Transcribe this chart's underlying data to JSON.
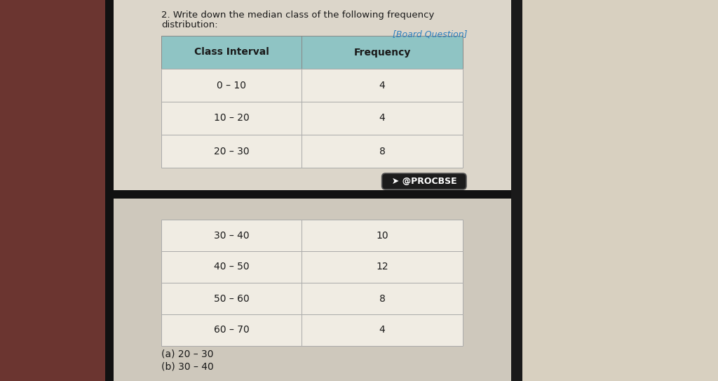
{
  "title_line1": "2. Write down the median class of the following frequency",
  "title_line2": "distribution:",
  "board_question_label": "[Board Question]",
  "col_headers": [
    "Class Interval",
    "Frequency"
  ],
  "top_rows": [
    [
      "0 – 10",
      "4"
    ],
    [
      "10 – 20",
      "4"
    ],
    [
      "20 – 30",
      "8"
    ]
  ],
  "bottom_rows": [
    [
      "30 – 40",
      "10"
    ],
    [
      "40 – 50",
      "12"
    ],
    [
      "50 – 60",
      "8"
    ],
    [
      "60 – 70",
      "4"
    ]
  ],
  "answers": [
    "(a) 20 – 30",
    "(b) 30 – 40"
  ],
  "bg_top": "#dcd6ca",
  "bg_bottom": "#cec8bc",
  "header_bg": "#8fc4c4",
  "header_text": "#1a1a1a",
  "cell_bg": "#f0ece3",
  "cell_line": "#aaaaaa",
  "cell_text": "#1a1a1a",
  "title_color": "#1a1a1a",
  "board_color": "#2a7fbf",
  "procbse_bg": "#1c1c1c",
  "procbse_text": "#ffffff",
  "overall_bg_left": "#6b3a2a",
  "overall_bg_right": "#e8e0d0",
  "overall_bg_dark": "#1a1a1a",
  "divider_color": "#111111",
  "left_panel_bg": "#7a4030",
  "right_panel_bg": "#c8c0b0"
}
